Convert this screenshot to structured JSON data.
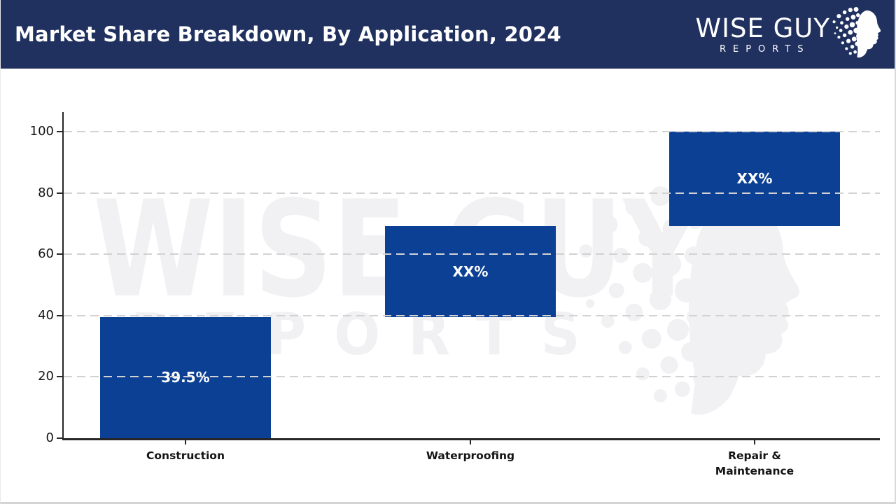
{
  "header": {
    "title": "Market Share Breakdown, By Application, 2024",
    "logo": {
      "brand": "WISE GUY",
      "sub": "REPORTS"
    }
  },
  "watermark": {
    "line1": "WISE GUY",
    "line2": "REPORTS"
  },
  "colors": {
    "header_bg": "#20315f",
    "bar": "#0b4094",
    "grid": "#d2d2d2",
    "axis": "#262626",
    "tick_label": "#141414",
    "bar_label": "#ffffff",
    "watermark": "#f1f1f4"
  },
  "chart_data": {
    "type": "bar",
    "subtype": "floating-waterfall-columns",
    "title": "Market Share Breakdown, By Application, 2024",
    "categories": [
      "Construction",
      "Waterproofing",
      "Repair & Maintenance"
    ],
    "category_lines": [
      [
        "Construction"
      ],
      [
        "Waterproofing"
      ],
      [
        "Repair &",
        "Maintenance"
      ]
    ],
    "segments": [
      {
        "category": "Construction",
        "start": 0,
        "end": 39.5,
        "label": "39.5%"
      },
      {
        "category": "Waterproofing",
        "start": 39.5,
        "end": 69.2,
        "label": "XX%"
      },
      {
        "category": "Repair & Maintenance",
        "start": 69.2,
        "end": 100,
        "label": "XX%"
      }
    ],
    "xlabel": "",
    "ylabel": "",
    "ylim": [
      0,
      106
    ],
    "yticks": [
      0,
      20,
      40,
      60,
      80,
      100
    ],
    "grid": "horizontal-dashed",
    "legend": "none"
  }
}
